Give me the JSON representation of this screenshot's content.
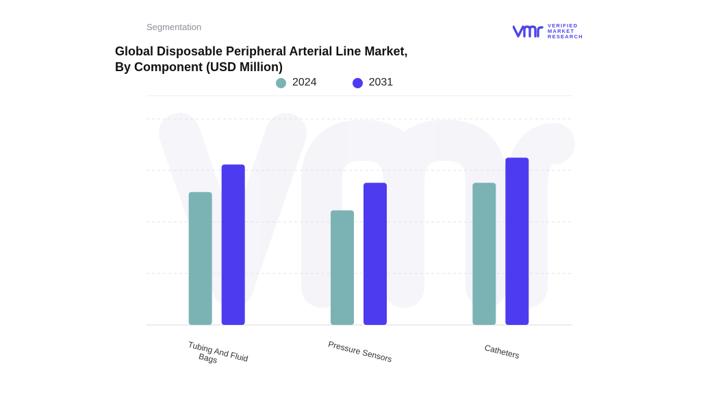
{
  "header": {
    "segmentation_label": "Segmentation",
    "title_line1": "Global Disposable Peripheral Arterial Line Market,",
    "title_line2": "By Component (USD Million)"
  },
  "logo": {
    "mark": "vmr",
    "line1": "VERIFIED",
    "line2": "MARKET",
    "line3": "RESEARCH",
    "color": "#4f46e5"
  },
  "chart_data": {
    "type": "bar",
    "categories": [
      "Tubing And Fluid Bags",
      "Pressure Sensors",
      "Catheters"
    ],
    "series": [
      {
        "name": "2024",
        "color": "#7bb3b5",
        "values": [
          58,
          50,
          62
        ]
      },
      {
        "name": "2031",
        "color": "#4d3bf0",
        "values": [
          70,
          62,
          73
        ]
      }
    ],
    "ylim": [
      0,
      100
    ],
    "grid": true,
    "legend_position": "top-center",
    "y_tick_labels_shown": false
  }
}
